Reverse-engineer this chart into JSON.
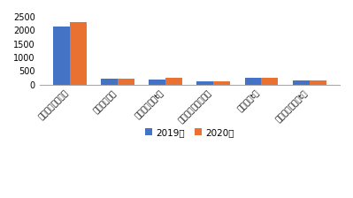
{
  "categories": [
    "主营收入（亿元）",
    "利润（亿元）",
    "出口数量（万t）",
    "出口金额（亿美元）",
    "产量（万t）",
    "需求商品量（万t）"
  ],
  "values_2019": [
    2150,
    230,
    200,
    120,
    260,
    170
  ],
  "values_2020": [
    2300,
    220,
    260,
    120,
    240,
    160
  ],
  "color_2019": "#4472C4",
  "color_2020": "#E97132",
  "legend_2019": "2019年",
  "legend_2020": "2020年",
  "ylim": [
    0,
    2500
  ],
  "yticks": [
    0,
    500,
    1000,
    1500,
    2000,
    2500
  ],
  "bar_width": 0.35,
  "background_color": "#FFFFFF",
  "tick_fontsize": 7,
  "legend_fontsize": 7.5,
  "xlabel_fontsize": 6.5
}
